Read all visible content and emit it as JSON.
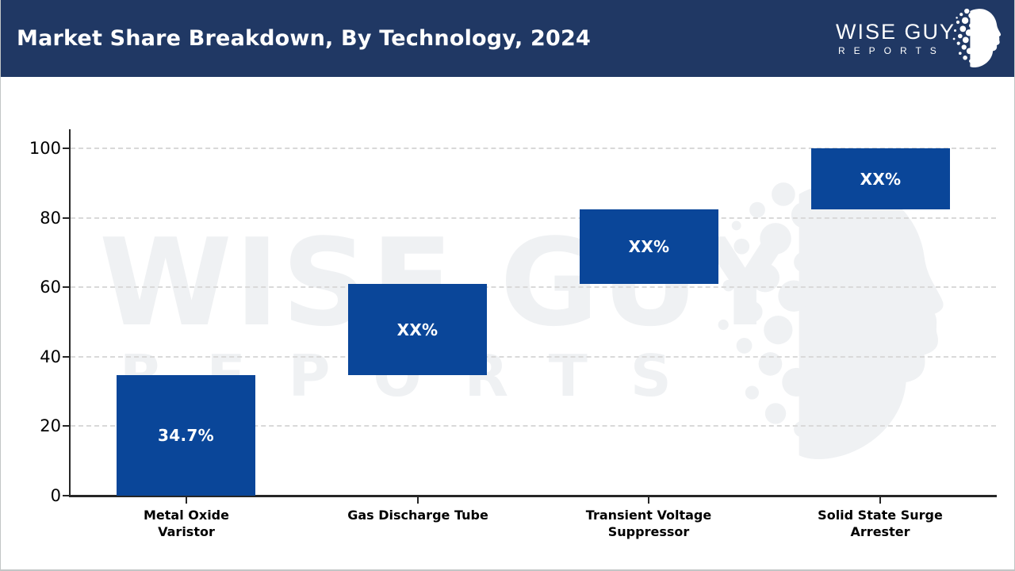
{
  "header": {
    "title": "Market Share Breakdown, By Technology, 2024",
    "logo": {
      "line1": "WISE GUY",
      "line2": "REPORTS"
    }
  },
  "watermark": {
    "line1": "WISE GUY",
    "line2": "REPORTS"
  },
  "chart_data": {
    "type": "bar",
    "subtype": "waterfall-stacked-breakdown",
    "title": "Market Share Breakdown, By Technology, 2024",
    "categories": [
      "Metal Oxide Varistor",
      "Gas Discharge Tube",
      "Transient Voltage Suppressor",
      "Solid State Surge Arrester"
    ],
    "segments": [
      {
        "category": "Metal Oxide Varistor",
        "category_lines": [
          "Metal Oxide",
          "Varistor"
        ],
        "start": 0,
        "end": 34.7,
        "label": "34.7%"
      },
      {
        "category": "Gas Discharge Tube",
        "category_lines": [
          "Gas Discharge Tube"
        ],
        "start": 34.7,
        "end": 61,
        "label": "XX%"
      },
      {
        "category": "Transient Voltage Suppressor",
        "category_lines": [
          "Transient Voltage",
          "Suppressor"
        ],
        "start": 61,
        "end": 82.5,
        "label": "XX%"
      },
      {
        "category": "Solid State Surge Arrester",
        "category_lines": [
          "Solid State Surge",
          "Arrester"
        ],
        "start": 82.5,
        "end": 100,
        "label": "XX%"
      }
    ],
    "ylim": [
      0,
      100
    ],
    "yticks": [
      0,
      20,
      40,
      60,
      80,
      100
    ],
    "grid": "horizontal dashed",
    "legend": "none",
    "bar_color": "#0A4699",
    "bar_label_color": "#ffffff",
    "axis_color": "#262626",
    "gridline_color": "#d9d9d9"
  },
  "colors": {
    "header_bg": "#203864",
    "page_bg": "#ffffff",
    "watermark": "#eff1f3"
  }
}
